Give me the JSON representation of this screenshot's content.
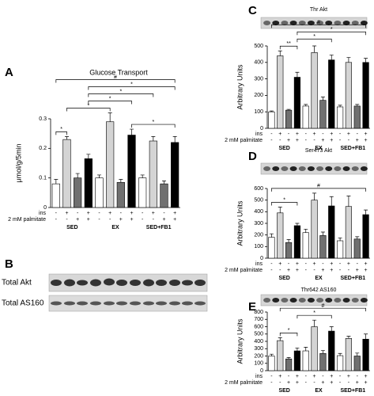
{
  "chart_data": [
    {
      "type": "bar",
      "panel": "A",
      "title": "Glucose Transport",
      "ylabel": "μmol/g/5min",
      "ylim": [
        0,
        0.3
      ],
      "yticks": [
        0,
        0.1,
        0.2,
        0.3
      ],
      "values": [
        0.08,
        0.23,
        0.1,
        0.165,
        0.1,
        0.29,
        0.085,
        0.245,
        0.1,
        0.225,
        0.08,
        0.22
      ],
      "errors": [
        0.015,
        0.01,
        0.015,
        0.015,
        0.01,
        0.03,
        0.01,
        0.02,
        0.01,
        0.015,
        0.01,
        0.02
      ],
      "colors": [
        "#ffffff",
        "#d4d4d4",
        "#707070",
        "#000000"
      ],
      "row_labels": [
        "ins",
        "2 mM palmitate"
      ],
      "ins": [
        "-",
        "+",
        "-",
        "+",
        "-",
        "+",
        "-",
        "+",
        "-",
        "+",
        "-",
        "+"
      ],
      "palmitate": [
        "-",
        "-",
        "+",
        "+",
        "-",
        "-",
        "+",
        "+",
        "-",
        "-",
        "+",
        "+"
      ],
      "groups": [
        "SED",
        "EX",
        "SED+FB1"
      ],
      "annotations": [
        {
          "text": "#",
          "bars": [
            0,
            11
          ]
        },
        {
          "text": "*",
          "bars": [
            3,
            11
          ]
        },
        {
          "text": "*",
          "bars": [
            3,
            9
          ]
        },
        {
          "text": "*",
          "bars": [
            3,
            7
          ]
        },
        {
          "text": "*",
          "bars": [
            1,
            5
          ]
        },
        {
          "text": "*",
          "bars": [
            7,
            11
          ]
        },
        {
          "text": "*",
          "bars": [
            0,
            1
          ]
        }
      ]
    },
    {
      "type": "bar",
      "panel": "C",
      "blot_label": "Thr Akt",
      "ylabel": "Arbitrary Units",
      "ylim": [
        0,
        500
      ],
      "yticks": [
        0,
        100,
        200,
        300,
        400,
        500
      ],
      "values": [
        100,
        440,
        110,
        310,
        135,
        460,
        170,
        415,
        130,
        400,
        135,
        400
      ],
      "errors": [
        5,
        30,
        5,
        30,
        10,
        40,
        20,
        30,
        10,
        30,
        10,
        25
      ],
      "colors": [
        "#ffffff",
        "#d4d4d4",
        "#707070",
        "#000000"
      ],
      "row_labels": [
        "ins",
        "2 mM palmitate"
      ],
      "ins": [
        "-",
        "+",
        "-",
        "+",
        "-",
        "+",
        "-",
        "+",
        "-",
        "+",
        "-",
        "+"
      ],
      "palmitate": [
        "-",
        "-",
        "+",
        "+",
        "-",
        "-",
        "+",
        "+",
        "-",
        "-",
        "+",
        "+"
      ],
      "groups": [
        "SED",
        "EX",
        "SED+FB1"
      ],
      "annotations": [
        {
          "text": "#",
          "bars": [
            0,
            11
          ]
        },
        {
          "text": "*",
          "bars": [
            3,
            11
          ]
        },
        {
          "text": "*",
          "bars": [
            3,
            7
          ]
        },
        {
          "text": "**",
          "bars": [
            1,
            3
          ]
        }
      ]
    },
    {
      "type": "bar",
      "panel": "D",
      "blot_label": "Ser473 Akt",
      "ylabel": "Arbitrary Units",
      "ylim": [
        0,
        600
      ],
      "yticks": [
        0,
        100,
        200,
        300,
        400,
        500,
        600
      ],
      "values": [
        180,
        390,
        135,
        280,
        220,
        500,
        195,
        450,
        150,
        445,
        165,
        375
      ],
      "errors": [
        30,
        50,
        25,
        20,
        30,
        60,
        30,
        80,
        25,
        90,
        20,
        40
      ],
      "colors": [
        "#ffffff",
        "#d4d4d4",
        "#707070",
        "#000000"
      ],
      "row_labels": [
        "ins",
        "2 mM palmitate"
      ],
      "ins": [
        "-",
        "+",
        "-",
        "+",
        "-",
        "+",
        "-",
        "+",
        "-",
        "+",
        "-",
        "+"
      ],
      "palmitate": [
        "-",
        "-",
        "+",
        "+",
        "-",
        "-",
        "+",
        "+",
        "-",
        "-",
        "+",
        "+"
      ],
      "groups": [
        "SED",
        "EX",
        "SED+FB1"
      ],
      "annotations": [
        {
          "text": "#",
          "bars": [
            0,
            11
          ]
        },
        {
          "text": "*",
          "bars": [
            0,
            3
          ]
        }
      ]
    },
    {
      "type": "bar",
      "panel": "E",
      "blot_label": "Thr642 AS160",
      "ylabel": "Arbitrary Units",
      "ylim": [
        0,
        800
      ],
      "yticks": [
        0,
        100,
        200,
        300,
        400,
        500,
        600,
        700,
        800
      ],
      "values": [
        200,
        410,
        160,
        270,
        270,
        600,
        235,
        540,
        205,
        440,
        200,
        430
      ],
      "errors": [
        25,
        40,
        20,
        40,
        50,
        90,
        40,
        60,
        30,
        30,
        40,
        70
      ],
      "colors": [
        "#ffffff",
        "#d4d4d4",
        "#707070",
        "#000000"
      ],
      "row_labels": [
        "ins",
        "2 mM palmitate"
      ],
      "ins": [
        "-",
        "+",
        "-",
        "+",
        "-",
        "+",
        "-",
        "+",
        "-",
        "+",
        "-",
        "+"
      ],
      "palmitate": [
        "-",
        "-",
        "+",
        "+",
        "-",
        "-",
        "+",
        "+",
        "-",
        "-",
        "+",
        "+"
      ],
      "groups": [
        "SED",
        "EX",
        "SED+FB1"
      ],
      "annotations": [
        {
          "text": "#",
          "bars": [
            1,
            11
          ]
        },
        {
          "text": "*",
          "bars": [
            3,
            7
          ]
        },
        {
          "text": "*",
          "bars": [
            1,
            3
          ]
        }
      ]
    }
  ],
  "blot_panel": {
    "panel": "B",
    "rows": [
      "Total Akt",
      "Total AS160"
    ]
  }
}
